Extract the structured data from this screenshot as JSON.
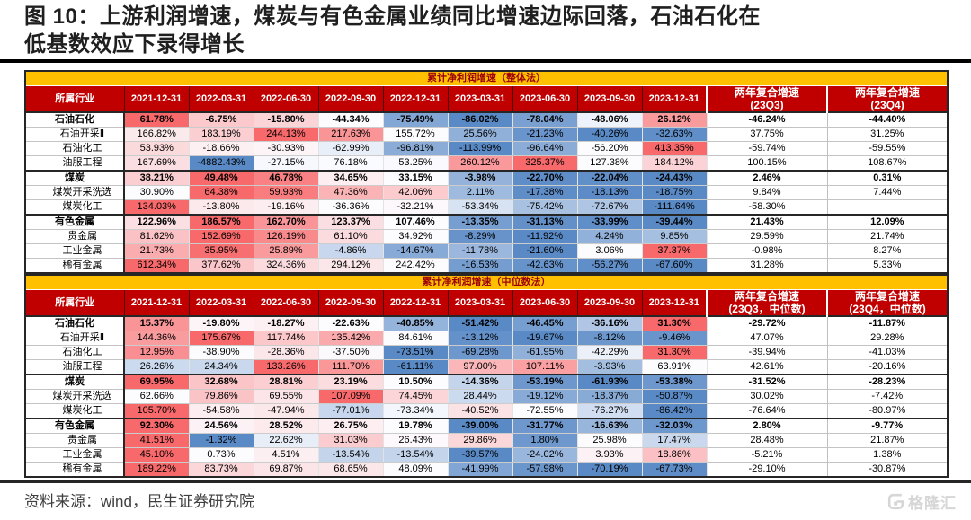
{
  "title": {
    "line1": "图 10：上游利润增速，煤炭与有色金属业绩同比增速边际回落，石油石化在",
    "line2": "低基数效应下录得增长"
  },
  "footer": {
    "source": "资料来源：wind，民生证券研究院",
    "logo": "格隆汇"
  },
  "colors": {
    "band_bg": "#FFC000",
    "band_text": "#9C0006",
    "header_bg": "#C00000",
    "header_text": "#FFFFFF",
    "scale_min": "#5A8AC6",
    "scale_mid": "#FCFCFF",
    "scale_max": "#F8696B"
  },
  "tables": [
    {
      "band_title": "累计净利润增速（整体法）",
      "industry_header": "所属行业",
      "date_headers": [
        "2021-12-31",
        "2022-03-31",
        "2022-06-30",
        "2022-09-30",
        "2022-12-31",
        "2023-03-31",
        "2023-06-30",
        "2023-09-30",
        "2023-12-31"
      ],
      "compound_headers": [
        {
          "line1": "两年复合增速",
          "line2": "(23Q3)"
        },
        {
          "line1": "两年复合增速",
          "line2": "(23Q4)"
        }
      ],
      "rows": [
        {
          "name": "石油石化",
          "level": "parent",
          "values": [
            61.78,
            -6.75,
            -15.8,
            -44.34,
            -75.49,
            -86.02,
            -78.04,
            -48.06,
            26.12
          ],
          "compound": [
            -46.24,
            -44.4
          ]
        },
        {
          "name": "石油开采Ⅱ",
          "level": "child",
          "values": [
            166.82,
            183.19,
            244.13,
            217.63,
            155.72,
            25.56,
            -21.23,
            -40.26,
            -32.63
          ],
          "compound": [
            37.75,
            31.25
          ]
        },
        {
          "name": "石油化工",
          "level": "child",
          "values": [
            53.93,
            -18.66,
            -30.93,
            -62.99,
            -96.81,
            -113.99,
            -96.64,
            -56.2,
            413.35
          ],
          "compound": [
            -59.74,
            -59.55
          ]
        },
        {
          "name": "油服工程",
          "level": "child",
          "values": [
            167.69,
            -4882.43,
            -27.15,
            76.18,
            53.25,
            260.12,
            325.37,
            127.38,
            184.12
          ],
          "compound": [
            100.15,
            108.67
          ]
        },
        {
          "name": "煤炭",
          "level": "parent",
          "values": [
            38.21,
            49.48,
            46.78,
            34.65,
            33.15,
            -3.98,
            -22.7,
            -22.04,
            -24.43
          ],
          "compound": [
            2.46,
            0.31
          ]
        },
        {
          "name": "煤炭开采洗选",
          "level": "child",
          "values": [
            30.9,
            64.38,
            59.93,
            47.36,
            42.06,
            2.11,
            -17.38,
            -18.13,
            -18.75
          ],
          "compound": [
            9.84,
            7.44
          ]
        },
        {
          "name": "煤炭化工",
          "level": "child",
          "values": [
            134.03,
            -13.8,
            -19.16,
            -36.36,
            -32.21,
            -53.34,
            -75.42,
            -72.67,
            -111.64
          ],
          "compound": [
            -58.3,
            null
          ]
        },
        {
          "name": "有色金属",
          "level": "parent",
          "values": [
            122.96,
            186.57,
            162.7,
            123.37,
            107.46,
            -13.35,
            -31.13,
            -33.99,
            -39.44
          ],
          "compound": [
            21.43,
            12.09
          ]
        },
        {
          "name": "贵金属",
          "level": "child",
          "values": [
            81.62,
            152.69,
            126.19,
            61.1,
            34.92,
            -8.29,
            -11.92,
            4.24,
            9.85
          ],
          "compound": [
            29.59,
            21.74
          ]
        },
        {
          "name": "工业金属",
          "level": "child",
          "values": [
            21.73,
            35.95,
            25.89,
            -4.86,
            -14.67,
            -11.78,
            -21.6,
            3.06,
            37.37
          ],
          "compound": [
            -0.98,
            8.27
          ]
        },
        {
          "name": "稀有金属",
          "level": "child",
          "values": [
            612.34,
            377.62,
            324.36,
            294.12,
            242.42,
            -16.53,
            -42.63,
            -56.27,
            -67.6
          ],
          "compound": [
            31.28,
            5.33
          ]
        }
      ]
    },
    {
      "band_title": "累计净利润增速（中位数法）",
      "industry_header": "所属行业",
      "date_headers": [
        "2021-12-31",
        "2022-03-31",
        "2022-06-30",
        "2022-09-30",
        "2022-12-31",
        "2023-03-31",
        "2023-06-30",
        "2023-09-30",
        "2023-12-31"
      ],
      "compound_headers": [
        {
          "line1": "两年复合增速",
          "line2": "(23Q3，中位数)"
        },
        {
          "line1": "两年复合增速",
          "line2": "(23Q4，中位数)"
        }
      ],
      "rows": [
        {
          "name": "石油石化",
          "level": "parent",
          "values": [
            15.37,
            -19.8,
            -18.27,
            -22.63,
            -40.85,
            -51.42,
            -46.45,
            -36.16,
            31.3
          ],
          "compound": [
            -29.72,
            -11.87
          ]
        },
        {
          "name": "石油开采Ⅱ",
          "level": "child",
          "values": [
            144.36,
            175.67,
            117.74,
            135.42,
            84.61,
            -13.12,
            -19.67,
            -8.12,
            -9.46
          ],
          "compound": [
            47.07,
            29.28
          ]
        },
        {
          "name": "石油化工",
          "level": "child",
          "values": [
            12.95,
            -38.9,
            -28.36,
            -37.5,
            -73.51,
            -69.28,
            -61.95,
            -42.29,
            31.3
          ],
          "compound": [
            -39.94,
            -41.03
          ]
        },
        {
          "name": "油服工程",
          "level": "child",
          "values": [
            26.26,
            24.34,
            133.26,
            111.7,
            -61.11,
            97.0,
            107.11,
            -3.93,
            63.91
          ],
          "compound": [
            42.61,
            -20.16
          ]
        },
        {
          "name": "煤炭",
          "level": "parent",
          "values": [
            69.95,
            32.68,
            28.81,
            23.19,
            10.5,
            -14.36,
            -53.19,
            -61.93,
            -53.38
          ],
          "compound": [
            -31.52,
            -28.23
          ]
        },
        {
          "name": "煤炭开采洗选",
          "level": "child",
          "values": [
            62.66,
            79.86,
            69.55,
            107.09,
            74.45,
            28.44,
            -19.12,
            -18.37,
            -50.87
          ],
          "compound": [
            30.02,
            -7.42
          ]
        },
        {
          "name": "煤炭化工",
          "level": "child",
          "values": [
            105.7,
            -54.58,
            -47.94,
            -77.01,
            -73.34,
            -40.52,
            -72.55,
            -76.27,
            -86.42
          ],
          "compound": [
            -76.64,
            -80.97
          ]
        },
        {
          "name": "有色金属",
          "level": "parent",
          "values": [
            92.3,
            24.56,
            28.52,
            26.75,
            19.78,
            -39.0,
            -31.77,
            -16.63,
            -32.03
          ],
          "compound": [
            2.8,
            -9.77
          ]
        },
        {
          "name": "贵金属",
          "level": "child",
          "values": [
            41.51,
            -1.32,
            22.62,
            31.03,
            26.43,
            29.86,
            1.8,
            25.98,
            17.47
          ],
          "compound": [
            28.48,
            21.87
          ]
        },
        {
          "name": "工业金属",
          "level": "child",
          "values": [
            45.1,
            0.73,
            4.51,
            -13.54,
            -13.54,
            -39.57,
            -24.02,
            3.93,
            18.86
          ],
          "compound": [
            -5.21,
            1.38
          ]
        },
        {
          "name": "稀有金属",
          "level": "child",
          "values": [
            189.22,
            83.73,
            69.87,
            68.65,
            48.09,
            -41.99,
            -57.98,
            -70.19,
            -67.73
          ],
          "compound": [
            -29.1,
            -30.87
          ]
        }
      ]
    }
  ]
}
